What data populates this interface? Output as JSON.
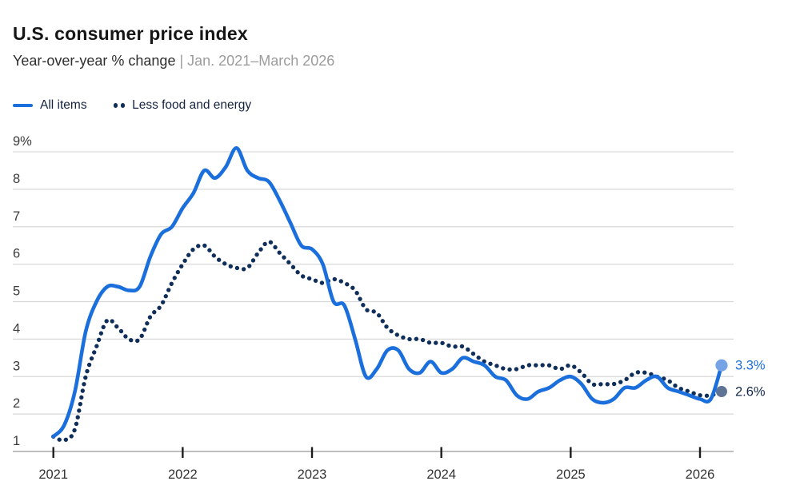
{
  "header": {
    "title": "U.S. consumer price index",
    "subtitle_measure": "Year-over-year % change",
    "subtitle_separator": "|",
    "subtitle_range": "Jan. 2021–March 2026"
  },
  "legend": {
    "items": [
      {
        "label": "All items",
        "swatch": "solid-line",
        "color": "#1b6fdc"
      },
      {
        "label": "Less food and energy",
        "swatch": "dotted-line",
        "color": "#0f2e5a"
      }
    ]
  },
  "chart_data": {
    "type": "line",
    "title": "U.S. consumer price index",
    "subtitle": "Year-over-year % change",
    "date_range": "Jan. 2021–March 2026",
    "x_unit": "month",
    "x_start": "Jan 2021",
    "x_end": "March 2026",
    "x_tick_labels": [
      "2021",
      "2022",
      "2023",
      "2024",
      "2025",
      "2026"
    ],
    "y_tick_labels": [
      "9%",
      "8",
      "7",
      "6",
      "5",
      "4",
      "3",
      "2",
      "1"
    ],
    "ylim": [
      1,
      9
    ],
    "grid": true,
    "legend_position": "top-left",
    "series": [
      {
        "name": "All items",
        "style": "solid",
        "color": "#1b6fdc",
        "end_dot_color": "#74a3e6",
        "end_label": "3.3%",
        "end_label_color": "#1b6fdc",
        "values": [
          1.4,
          1.7,
          2.6,
          4.2,
          5.0,
          5.4,
          5.4,
          5.3,
          5.4,
          6.2,
          6.8,
          7.0,
          7.5,
          7.9,
          8.5,
          8.3,
          8.6,
          9.1,
          8.5,
          8.3,
          8.2,
          7.7,
          7.1,
          6.5,
          6.4,
          6.0,
          5.0,
          4.9,
          4.0,
          3.0,
          3.2,
          3.7,
          3.7,
          3.2,
          3.1,
          3.4,
          3.1,
          3.2,
          3.5,
          3.4,
          3.3,
          3.0,
          2.9,
          2.5,
          2.4,
          2.6,
          2.7,
          2.9,
          3.0,
          2.8,
          2.4,
          2.3,
          2.4,
          2.7,
          2.7,
          2.9,
          3.0,
          2.7,
          2.6,
          2.5,
          2.4,
          2.4,
          3.3
        ]
      },
      {
        "name": "Less food and energy",
        "style": "dotted",
        "color": "#0f2e5a",
        "end_dot_color": "#5f7494",
        "end_label": "2.6%",
        "end_label_color": "#142a4c",
        "values": [
          1.4,
          1.3,
          1.6,
          3.0,
          3.8,
          4.5,
          4.3,
          4.0,
          4.0,
          4.6,
          4.9,
          5.5,
          6.0,
          6.4,
          6.5,
          6.2,
          6.0,
          5.9,
          5.9,
          6.3,
          6.6,
          6.3,
          6.0,
          5.7,
          5.6,
          5.5,
          5.6,
          5.5,
          5.3,
          4.8,
          4.7,
          4.3,
          4.1,
          4.0,
          4.0,
          3.9,
          3.9,
          3.8,
          3.8,
          3.6,
          3.4,
          3.3,
          3.2,
          3.2,
          3.3,
          3.3,
          3.3,
          3.2,
          3.3,
          3.1,
          2.8,
          2.8,
          2.8,
          2.9,
          3.1,
          3.1,
          3.0,
          2.9,
          2.7,
          2.6,
          2.5,
          2.5,
          2.6
        ]
      }
    ]
  }
}
